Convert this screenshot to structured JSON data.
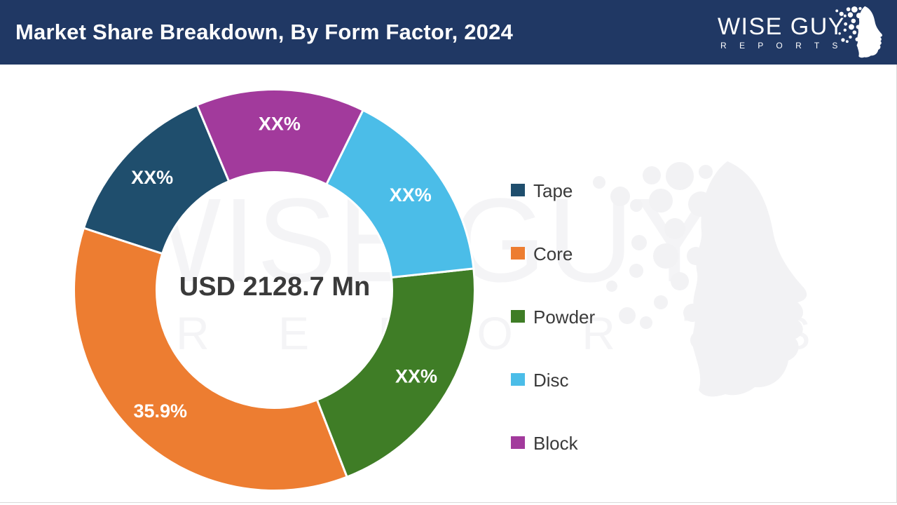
{
  "header": {
    "title": "Market Share Breakdown, By Form Factor, 2024",
    "bg_color": "#203864",
    "logo": {
      "line1": "WISE GUY",
      "line2": "R E P O R T S"
    }
  },
  "watermark": {
    "line1": "WISE GUY",
    "line2": "R E P O R T S"
  },
  "chart_data": {
    "type": "pie",
    "subtype": "donut",
    "title": "Market Share Breakdown, By Form Factor, 2024",
    "center_label": "USD 2128.7 Mn",
    "legend_position": "right",
    "direction": "counterclockwise",
    "start_angle_deg": 112.7,
    "label_note": "all slice labels masked as XX% except Core",
    "segments": [
      {
        "name": "Tape",
        "color": "#1F4E6D",
        "label": "XX%",
        "value_pct_est": 13.7
      },
      {
        "name": "Core",
        "color": "#ED7D31",
        "label": "35.9%",
        "value_pct_est": 35.9
      },
      {
        "name": "Powder",
        "color": "#3F7D26",
        "label": "XX%",
        "value_pct_est": 20.8
      },
      {
        "name": "Disc",
        "color": "#4BBDE8",
        "label": "XX%",
        "value_pct_est": 16.0
      },
      {
        "name": "Block",
        "color": "#A23A9C",
        "label": "XX%",
        "value_pct_est": 13.6
      }
    ]
  }
}
